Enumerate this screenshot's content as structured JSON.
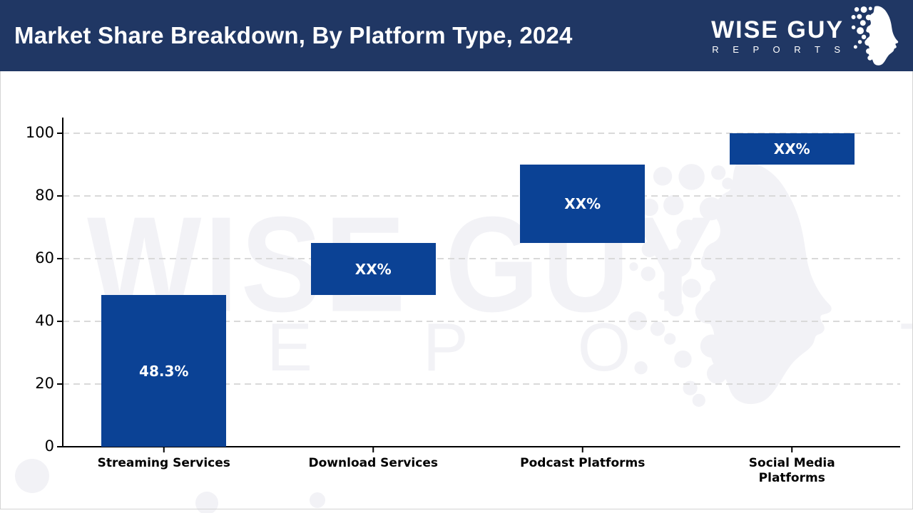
{
  "header": {
    "title": "Market Share Breakdown, By Platform Type, 2024",
    "bg_color": "#203764",
    "logo": {
      "main": "WISE GUY",
      "sub": "R E P O R T S"
    }
  },
  "watermark": {
    "line1": "WISE GUY",
    "line2": "R E P O R T S",
    "color": "#f2f2f6"
  },
  "chart_data": {
    "type": "bar",
    "subtype": "waterfall",
    "title": "Market Share Breakdown, By Platform Type, 2024",
    "xlabel": "",
    "ylabel": "",
    "categories": [
      "Streaming Services",
      "Download Services",
      "Podcast Platforms",
      "Social Media\nPlatforms"
    ],
    "series": [
      {
        "name": "Market Share",
        "segments": [
          {
            "category": "Streaming Services",
            "from": 0,
            "to": 48.3,
            "label": "48.3%"
          },
          {
            "category": "Download Services",
            "from": 48.3,
            "to": 65,
            "label": "XX%"
          },
          {
            "category": "Podcast Platforms",
            "from": 65,
            "to": 90,
            "label": "XX%"
          },
          {
            "category": "Social Media Platforms",
            "from": 90,
            "to": 100,
            "label": "XX%"
          }
        ]
      }
    ],
    "yticks": [
      0,
      20,
      40,
      60,
      80,
      100
    ],
    "ylim": [
      0,
      100
    ],
    "grid": "dashed-horizontal",
    "legend": "none",
    "bar_color": "#0b4295",
    "bar_label_color": "#ffffff",
    "gridline_color": "#d9d9d9",
    "axis_color": "#000000"
  }
}
